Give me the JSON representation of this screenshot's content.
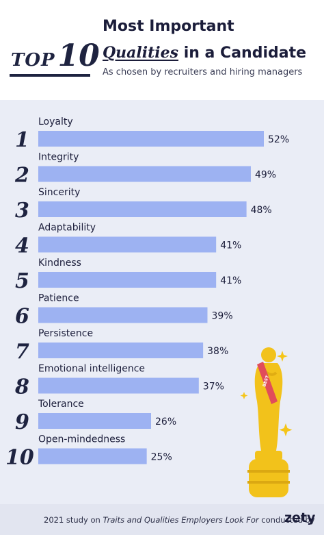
{
  "header": {
    "badge_top": "TOP",
    "badge_ten": "10",
    "title_line1": "Most Important",
    "title_line2_em": "Qualities",
    "title_line2_rest": " in a Candidate",
    "subtitle": "As chosen by recruiters and hiring managers"
  },
  "chart_data": {
    "type": "bar",
    "orientation": "horizontal",
    "categories": [
      "Loyalty",
      "Integrity",
      "Sincerity",
      "Adaptability",
      "Kindness",
      "Patience",
      "Persistence",
      "Emotional intelligence",
      "Tolerance",
      "Open-mindedness"
    ],
    "ranks": [
      "1",
      "2",
      "3",
      "4",
      "5",
      "6",
      "7",
      "8",
      "9",
      "10"
    ],
    "values": [
      52,
      49,
      48,
      41,
      41,
      39,
      38,
      37,
      26,
      25
    ],
    "value_labels": [
      "52%",
      "49%",
      "48%",
      "41%",
      "41%",
      "39%",
      "38%",
      "37%",
      "26%",
      "25%"
    ],
    "bar_color": "#9db2f2",
    "rank_color": "#1e2340"
  },
  "illustration": {
    "sash_text": "BEST"
  },
  "footer": {
    "text_pre": "2021 study on ",
    "text_italic": "Traits and Qualities Employers Look For",
    "text_post": " conducted by",
    "logo": "zety"
  }
}
